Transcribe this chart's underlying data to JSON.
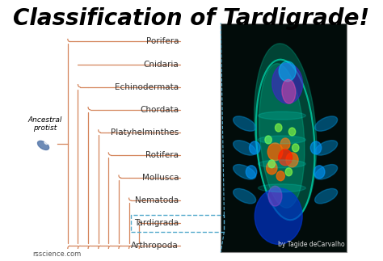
{
  "title": "Classification of Tardigrade!",
  "title_fontsize": 20,
  "background_color": "#ffffff",
  "taxa": [
    "Porifera",
    "Cnidaria",
    "Echinodermata",
    "Chordata",
    "Platyhelminthes",
    "Rotifera",
    "Mollusca",
    "Nematoda",
    "Tardigrada",
    "Arthropoda"
  ],
  "ancestral_label": "Ancestral\nprotist",
  "credit_left": "rsscience.com",
  "credit_right": "by Tagide deCarvalho",
  "tree_color": "#d4845a",
  "label_color": "#333333",
  "label_fontsize": 7.5,
  "small_fontsize": 6.5,
  "ancestral_protist_color": "#5577aa",
  "dashed_box_color": "#55aacc",
  "img_bg": "#020c0a",
  "img_border": "#888888"
}
